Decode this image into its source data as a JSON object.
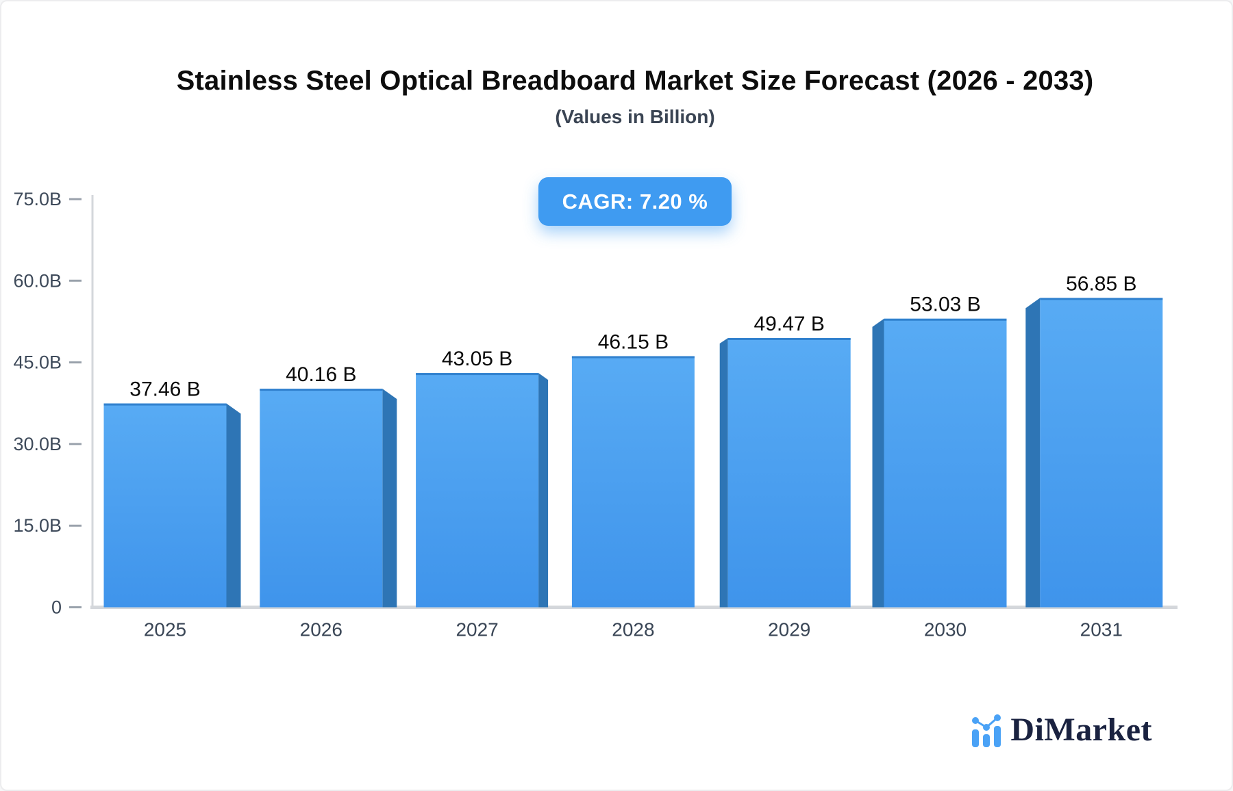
{
  "header": {
    "title": "Stainless Steel Optical Breadboard Market Size Forecast (2026 - 2033)",
    "subtitle": "(Values in Billion)",
    "badge_label": "CAGR: 7.20 %"
  },
  "chart_data": {
    "type": "bar",
    "title": "Stainless Steel Optical Breadboard Market Size Forecast (2026 - 2033)",
    "subtitle": "(Values in Billion)",
    "cagr": "7.20 %",
    "categories": [
      "2025",
      "2026",
      "2027",
      "2028",
      "2029",
      "2030",
      "2031"
    ],
    "values": [
      37.46,
      40.16,
      43.05,
      46.15,
      49.47,
      53.03,
      56.85
    ],
    "value_labels": [
      "37.46 B",
      "40.16 B",
      "43.05 B",
      "46.15 B",
      "49.47 B",
      "53.03 B",
      "56.85 B"
    ],
    "y_ticks": [
      0,
      15,
      30,
      45,
      60,
      75
    ],
    "y_tick_labels": [
      "0",
      "15.0B",
      "30.0B",
      "45.0B",
      "60.0B",
      "75.0B"
    ],
    "ylim": [
      0,
      75
    ],
    "grid": "off",
    "legend": "none",
    "xlabel": "",
    "ylabel": ""
  },
  "colors": {
    "bar_front_top": "#58abf4",
    "bar_front_bottom": "#3f94eb",
    "bar_top_edge": "#3181ce",
    "bar_side": "#2e75b5",
    "badge_bg": "#3f9bf1",
    "axis_line": "#d4d7db",
    "tick_mark": "#9aa2ac",
    "tick_text": "#3e4a5a",
    "x_label_text": "#3a4656",
    "value_label_text": "#0a0a0a",
    "logo_blue": "#4aa2f6",
    "logo_navy": "#1a2240"
  },
  "footer": {
    "brand": "DiMarket"
  }
}
